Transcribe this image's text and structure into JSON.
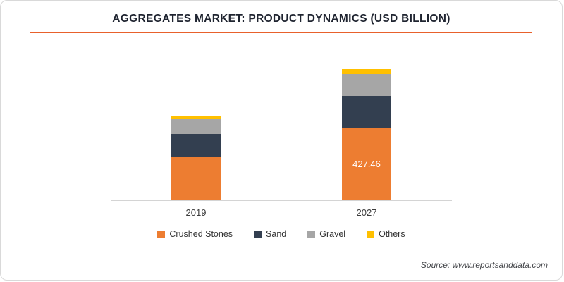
{
  "source": "Source: www.reportsanddata.com",
  "chart_data": {
    "type": "bar",
    "stacked": true,
    "title": "AGGREGATES MARKET: PRODUCT DYNAMICS (USD BILLION)",
    "categories": [
      "2019",
      "2027"
    ],
    "series": [
      {
        "name": "Crushed Stones",
        "color": "#ED7D31",
        "values": [
          258,
          427.46
        ]
      },
      {
        "name": "Sand",
        "color": "#333F50",
        "values": [
          133,
          190
        ]
      },
      {
        "name": "Gravel",
        "color": "#A6A6A6",
        "values": [
          87,
          128
        ]
      },
      {
        "name": "Others",
        "color": "#FFC000",
        "values": [
          21,
          29
        ]
      }
    ],
    "data_labels": [
      {
        "category": "2027",
        "series": "Crushed Stones",
        "text": "427.46"
      }
    ],
    "xlabel": "",
    "ylabel": "",
    "grid": false,
    "legend_position": "bottom",
    "accent_rule_color": "#E8612C"
  }
}
